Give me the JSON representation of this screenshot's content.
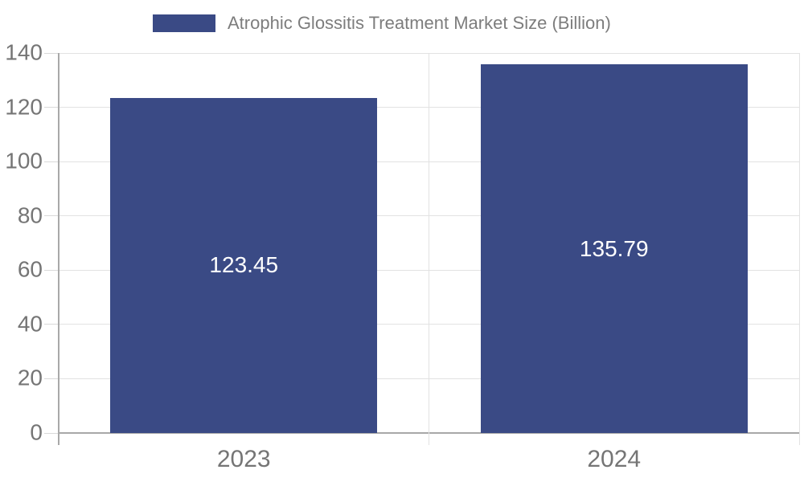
{
  "legend": {
    "label": "Atrophic Glossitis Treatment Market Size (Billion)",
    "swatch_color": "#3a4a85"
  },
  "chart_data": {
    "type": "bar",
    "title": "Atrophic Glossitis Treatment Market Size (Billion)",
    "categories": [
      "2023",
      "2024"
    ],
    "values": [
      123.45,
      135.79
    ],
    "value_labels": [
      "123.45",
      "135.79"
    ],
    "xlabel": "",
    "ylabel": "",
    "ylim": [
      0,
      140
    ],
    "yticks": [
      0,
      20,
      40,
      60,
      80,
      100,
      120,
      140
    ],
    "grid": true,
    "legend_position": "top-center",
    "colors": {
      "bar": "#3a4a85",
      "value_label": "#ffffff",
      "grid": "#e2e2e2",
      "axis": "#a8a8a8",
      "tick_label": "#757575",
      "title": "#7d7d7d",
      "background": "#ffffff"
    }
  }
}
